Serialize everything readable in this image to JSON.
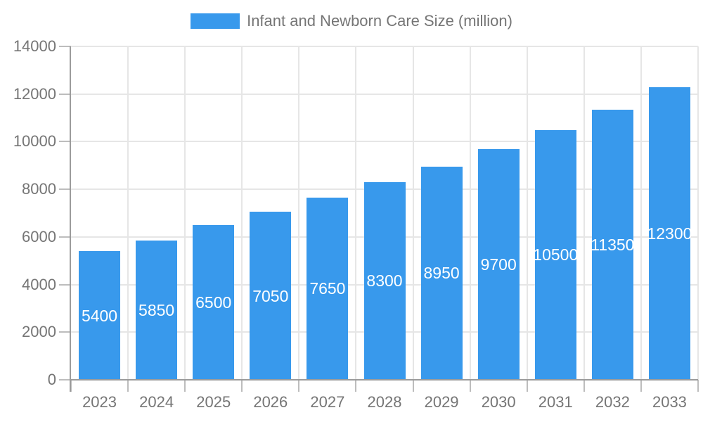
{
  "legend": {
    "label": "Infant and Newborn Care Size (million)"
  },
  "chart_data": {
    "type": "bar",
    "title": "Infant and Newborn Care Size (million)",
    "xlabel": "",
    "ylabel": "",
    "series_name": "Infant and Newborn Care Size (million)",
    "categories": [
      "2023",
      "2024",
      "2025",
      "2026",
      "2027",
      "2028",
      "2029",
      "2030",
      "2031",
      "2032",
      "2033"
    ],
    "values": [
      5400,
      5850,
      6500,
      7050,
      7650,
      8300,
      8950,
      9700,
      10500,
      11350,
      12300
    ],
    "ylim": [
      0,
      14000
    ],
    "yticks": [
      0,
      2000,
      4000,
      6000,
      8000,
      10000,
      12000,
      14000
    ],
    "grid": true,
    "legend_position": "top",
    "value_labels_inside_bars": true,
    "colors": {
      "bar": "#3899EC",
      "value_label": "#FFFFFF",
      "axis_text": "#757575",
      "axis_line": "#9B9B9B",
      "gridline": "#E6E6E6",
      "tick": "#BDBDBD"
    }
  }
}
